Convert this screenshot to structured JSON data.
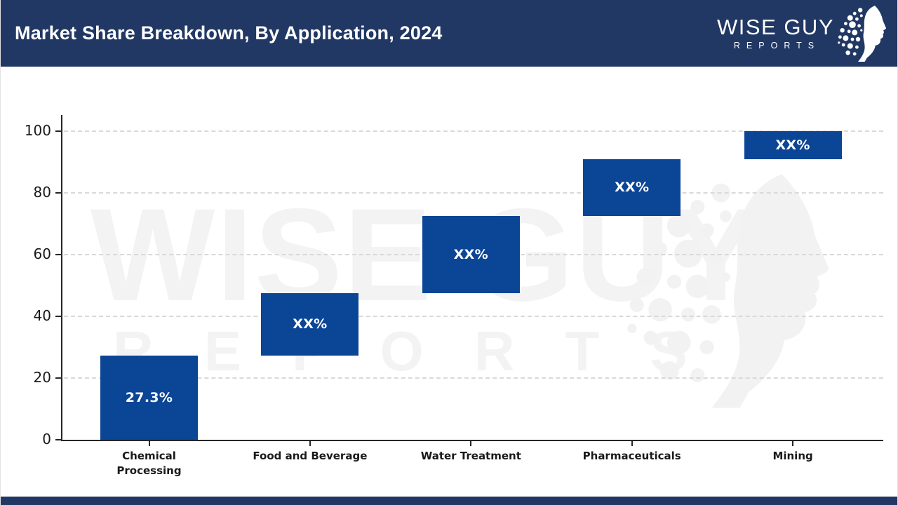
{
  "header": {
    "title": "Market Share Breakdown, By Application, 2024",
    "logo": {
      "line1": "WISE GUY",
      "line2": "REPORTS",
      "icon": "head-dots-icon"
    },
    "bg_color": "#213864"
  },
  "watermark": {
    "line1": "WISE GUY",
    "line2": "REPORTS"
  },
  "chart_data": {
    "type": "bar",
    "subtype": "waterfall",
    "title": "Market Share Breakdown, By Application, 2024",
    "categories": [
      "Chemical Processing",
      "Food and Beverage",
      "Water Treatment",
      "Pharmaceuticals",
      "Mining"
    ],
    "category_lines": [
      [
        "Chemical",
        "Processing"
      ],
      [
        "Food and Beverage"
      ],
      [
        "Water Treatment"
      ],
      [
        "Pharmaceuticals"
      ],
      [
        "Mining"
      ]
    ],
    "segments": [
      {
        "category": "Chemical Processing",
        "label": "27.3%",
        "start": 0,
        "end": 27.3
      },
      {
        "category": "Food and Beverage",
        "label": "XX%",
        "start": 27.3,
        "end": 47.5
      },
      {
        "category": "Water Treatment",
        "label": "XX%",
        "start": 47.5,
        "end": 72.5
      },
      {
        "category": "Pharmaceuticals",
        "label": "XX%",
        "start": 72.5,
        "end": 91
      },
      {
        "category": "Mining",
        "label": "XX%",
        "start": 91,
        "end": 100
      }
    ],
    "xlabel": "",
    "ylabel": "",
    "ylim": [
      0,
      100
    ],
    "yticks": [
      0,
      20,
      40,
      60,
      80,
      100
    ],
    "grid": "horizontal-dashed",
    "legend": "none",
    "colors": {
      "bar": "#0b4596",
      "bar_label": "#ffffff",
      "grid": "#d9d9d9",
      "axis": "#262626",
      "tick_label": "#1a1a1a"
    }
  },
  "footer": {
    "bg_color": "#213864"
  }
}
